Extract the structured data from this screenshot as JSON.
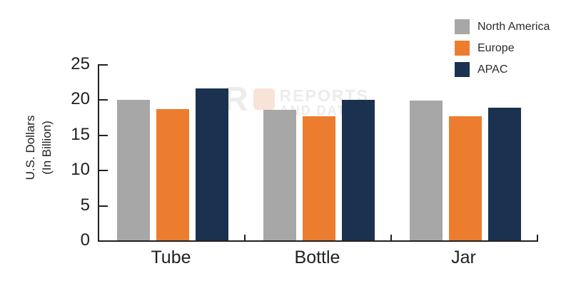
{
  "chart_data": {
    "type": "bar",
    "title": "",
    "categories": [
      "Tube",
      "Bottle",
      "Jar"
    ],
    "series": [
      {
        "name": "North America",
        "color": "#a7a7a7",
        "values": [
          19.9,
          18.5,
          19.8
        ]
      },
      {
        "name": "Europe",
        "color": "#ed7d2e",
        "values": [
          18.6,
          17.6,
          17.6
        ]
      },
      {
        "name": "APAC",
        "color": "#1a3150",
        "values": [
          21.6,
          19.9,
          18.8
        ]
      }
    ],
    "xlabel": "",
    "ylabel": "U.S. Dollars (In Billion)",
    "ylabel_lines": [
      "U.S. Dollars",
      "(In Billion)"
    ],
    "ylim": [
      0,
      25
    ],
    "yticks": [
      0,
      5,
      10,
      15,
      20,
      25
    ],
    "grid": false,
    "legend_position": "top-right",
    "bar_colors_note": "series colors above",
    "axis_color": "#212121",
    "background_color": "#ffffff"
  },
  "legend": {
    "items": [
      {
        "label": "North America",
        "color": "#a7a7a7"
      },
      {
        "label": "Europe",
        "color": "#ed7d2e"
      },
      {
        "label": "APAC",
        "color": "#1a3150"
      }
    ]
  },
  "watermark": {
    "logo_letter": "R",
    "line1": "REPORTS",
    "line2": "AND DATA"
  }
}
